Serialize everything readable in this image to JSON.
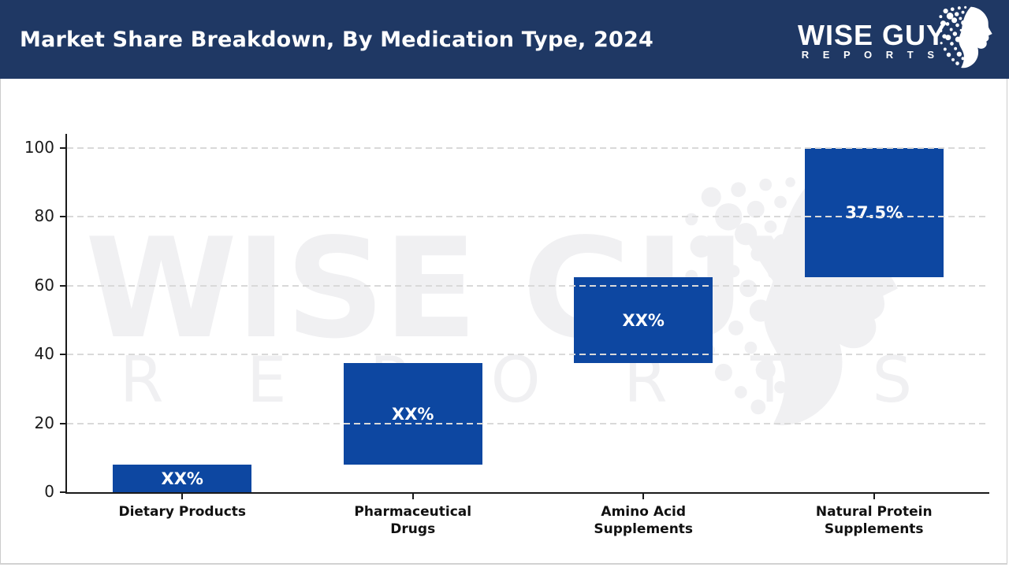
{
  "header": {
    "title": "Market Share Breakdown, By Medication Type, 2024",
    "bg_color": "#1f3864",
    "logo": {
      "name_top": "WISE GUY",
      "name_bottom": "R E P O R T S"
    }
  },
  "watermark": {
    "text_top": "WISE GUY",
    "text_bottom": "R E P O R T S",
    "color": "#f0f0f2"
  },
  "chart_data": {
    "type": "bar",
    "variant": "waterfall",
    "title": "Market Share Breakdown, By Medication Type, 2024",
    "xlabel": "",
    "ylabel": "",
    "ylim": [
      0,
      100
    ],
    "yticks": [
      0,
      20,
      40,
      60,
      80,
      100
    ],
    "grid": "horizontal-dashed",
    "legend": "none",
    "bar_color": "#0d47a1",
    "bar_label_color": "#ffffff",
    "categories": [
      "Dietary Products",
      "Pharmaceutical Drugs",
      "Amino Acid Supplements",
      "Natural Protein Supplements"
    ],
    "category_label_lines": [
      [
        "Dietary Products"
      ],
      [
        "Pharmaceutical",
        "Drugs"
      ],
      [
        "Amino Acid",
        "Supplements"
      ],
      [
        "Natural Protein",
        "Supplements"
      ]
    ],
    "bars": [
      {
        "category": "Dietary Products",
        "start": 0,
        "end": 8,
        "label": "XX%"
      },
      {
        "category": "Pharmaceutical Drugs",
        "start": 8,
        "end": 37.5,
        "label": "XX%"
      },
      {
        "category": "Amino Acid Supplements",
        "start": 37.5,
        "end": 62.5,
        "label": "XX%"
      },
      {
        "category": "Natural Protein Supplements",
        "start": 62.5,
        "end": 100,
        "label": "37.5%"
      }
    ]
  }
}
